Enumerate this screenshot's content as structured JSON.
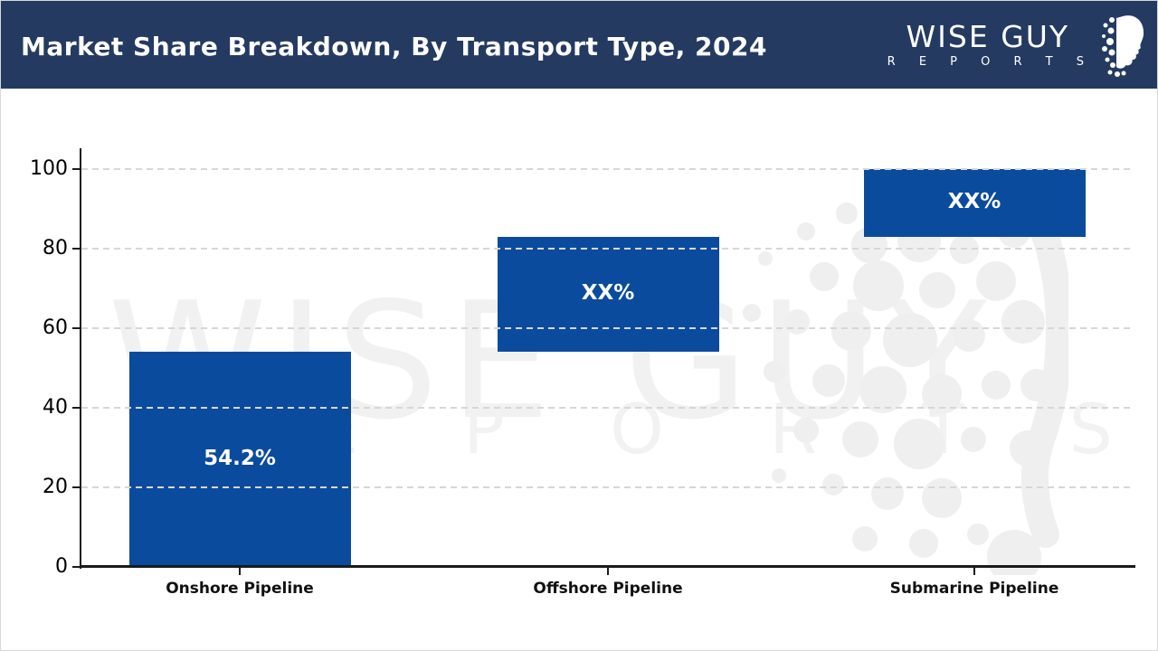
{
  "header": {
    "title": "Market Share Breakdown, By Transport Type, 2024",
    "logo": {
      "wordmark": "WISE GUY",
      "subtext": "R E P O R T S"
    }
  },
  "watermark": {
    "line1": "WISE GUY",
    "line2": "R E P O R T S"
  },
  "chart_data": {
    "type": "bar",
    "subtype": "waterfall-stacked",
    "title": "Market Share Breakdown, By Transport Type, 2024",
    "categories": [
      "Onshore Pipeline",
      "Offshore Pipeline",
      "Submarine Pipeline"
    ],
    "segments": [
      {
        "category": "Onshore Pipeline",
        "start": 0,
        "end": 54.2,
        "label": "54.2%"
      },
      {
        "category": "Offshore Pipeline",
        "start": 54.2,
        "end": 83,
        "label": "XX%"
      },
      {
        "category": "Submarine Pipeline",
        "start": 83,
        "end": 100,
        "label": "XX%"
      }
    ],
    "xlabel": "",
    "ylabel": "",
    "ylim": [
      0,
      100
    ],
    "yticks": [
      0,
      20,
      40,
      60,
      80,
      100
    ],
    "grid": "horizontal dashed, drawn over bars",
    "legend": "none",
    "bar_color": "#0B4B9D",
    "bar_label_color": "#ffffff",
    "axis_color": "#1a1a1a",
    "grid_color": "#d7d7d7",
    "header_bg_color": "#243A61"
  }
}
